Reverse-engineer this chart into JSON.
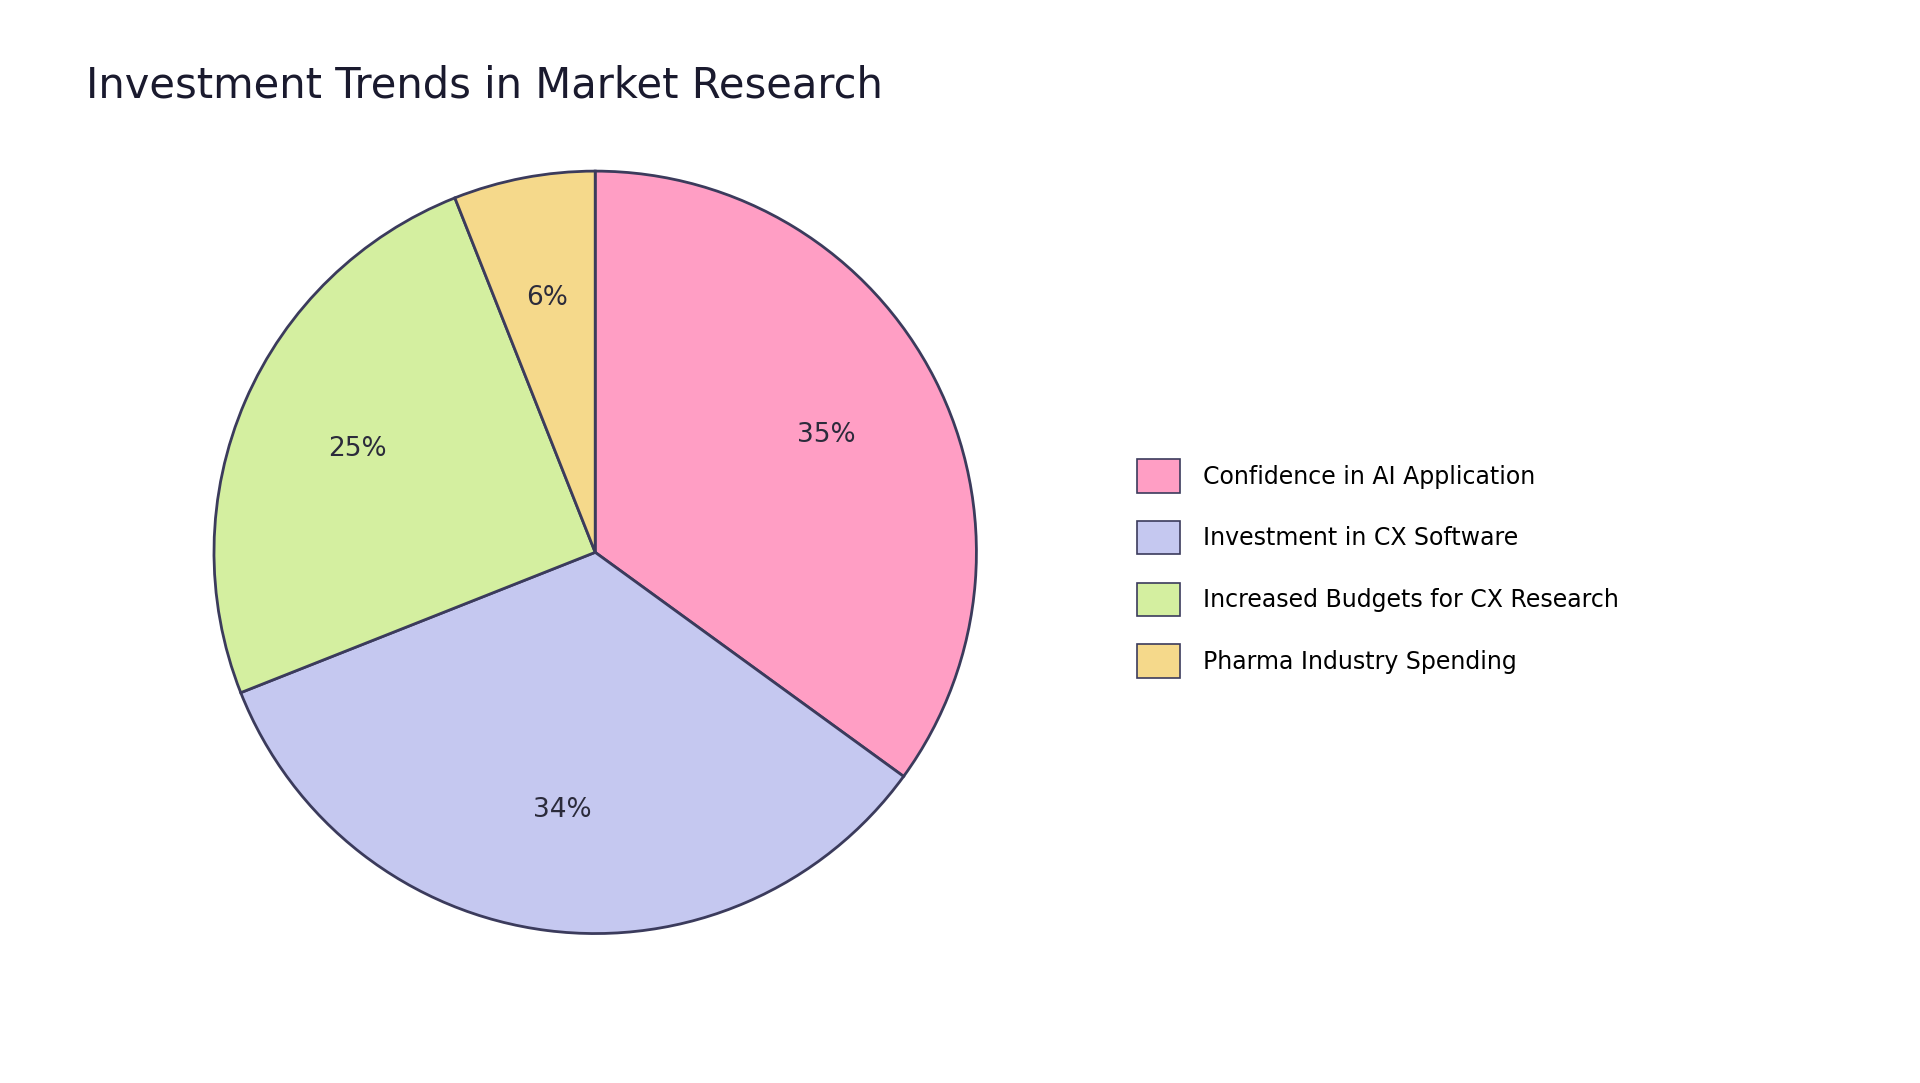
{
  "title": "Investment Trends in Market Research",
  "slices": [
    {
      "label": "Confidence in AI Application",
      "value": 35,
      "color": "#FF9EC4"
    },
    {
      "label": "Investment in CX Software",
      "value": 34,
      "color": "#C5C8F0"
    },
    {
      "label": "Increased Budgets for CX Research",
      "value": 25,
      "color": "#D4EFA0"
    },
    {
      "label": "Pharma Industry Spending",
      "value": 6,
      "color": "#F5D98B"
    }
  ],
  "background_color": "#FFFFFF",
  "edge_color": "#3B3B5C",
  "edge_linewidth": 2.0,
  "title_fontsize": 30,
  "legend_fontsize": 17,
  "startangle": 90,
  "autopct_fontsize": 19
}
